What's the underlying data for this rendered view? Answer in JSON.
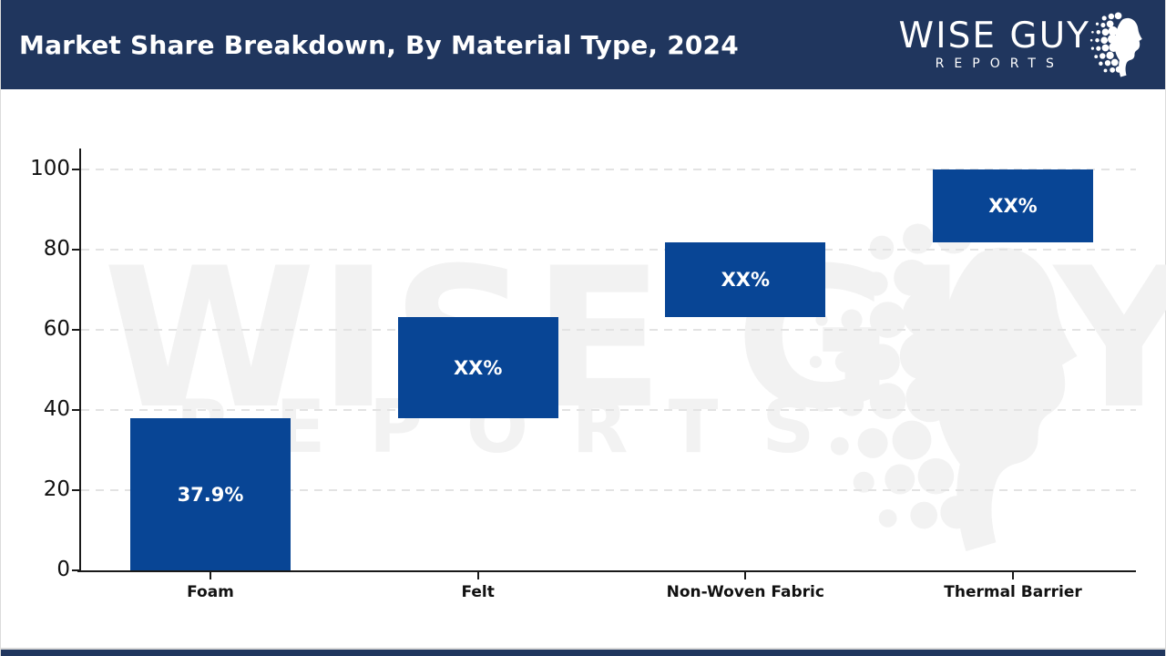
{
  "header": {
    "title": "Market Share Breakdown, By Material Type, 2024",
    "logo": {
      "line1": "WISE GUY",
      "line2": "REPORTS"
    }
  },
  "watermark": {
    "line1": "WISE GUY",
    "line2": "REPORTS"
  },
  "chart_data": {
    "type": "bar",
    "subtype": "waterfall",
    "title": "Market Share Breakdown, By Material Type, 2024",
    "categories": [
      "Foam",
      "Felt",
      "Non-Woven Fabric",
      "Thermal Barrier"
    ],
    "bars": [
      {
        "category": "Foam",
        "start": 0,
        "end": 37.9,
        "label": "37.9%"
      },
      {
        "category": "Felt",
        "start": 37.9,
        "end": 63.0,
        "label": "XX%"
      },
      {
        "category": "Non-Woven Fabric",
        "start": 63.0,
        "end": 81.7,
        "label": "XX%"
      },
      {
        "category": "Thermal Barrier",
        "start": 81.7,
        "end": 100,
        "label": "XX%"
      }
    ],
    "yticks": [
      0,
      20,
      40,
      60,
      80,
      100
    ],
    "ylim": [
      0,
      105
    ],
    "xlabel": "",
    "ylabel": "",
    "grid": "horizontal-dashed",
    "legend": "none",
    "bar_color": "#084595",
    "bar_label_color": "#ffffff"
  },
  "colors": {
    "header_bg": "#20365e",
    "bar": "#084595",
    "watermark": "#f2f2f2",
    "grid": "#e3e3e3",
    "axis": "#1a1a1a"
  }
}
